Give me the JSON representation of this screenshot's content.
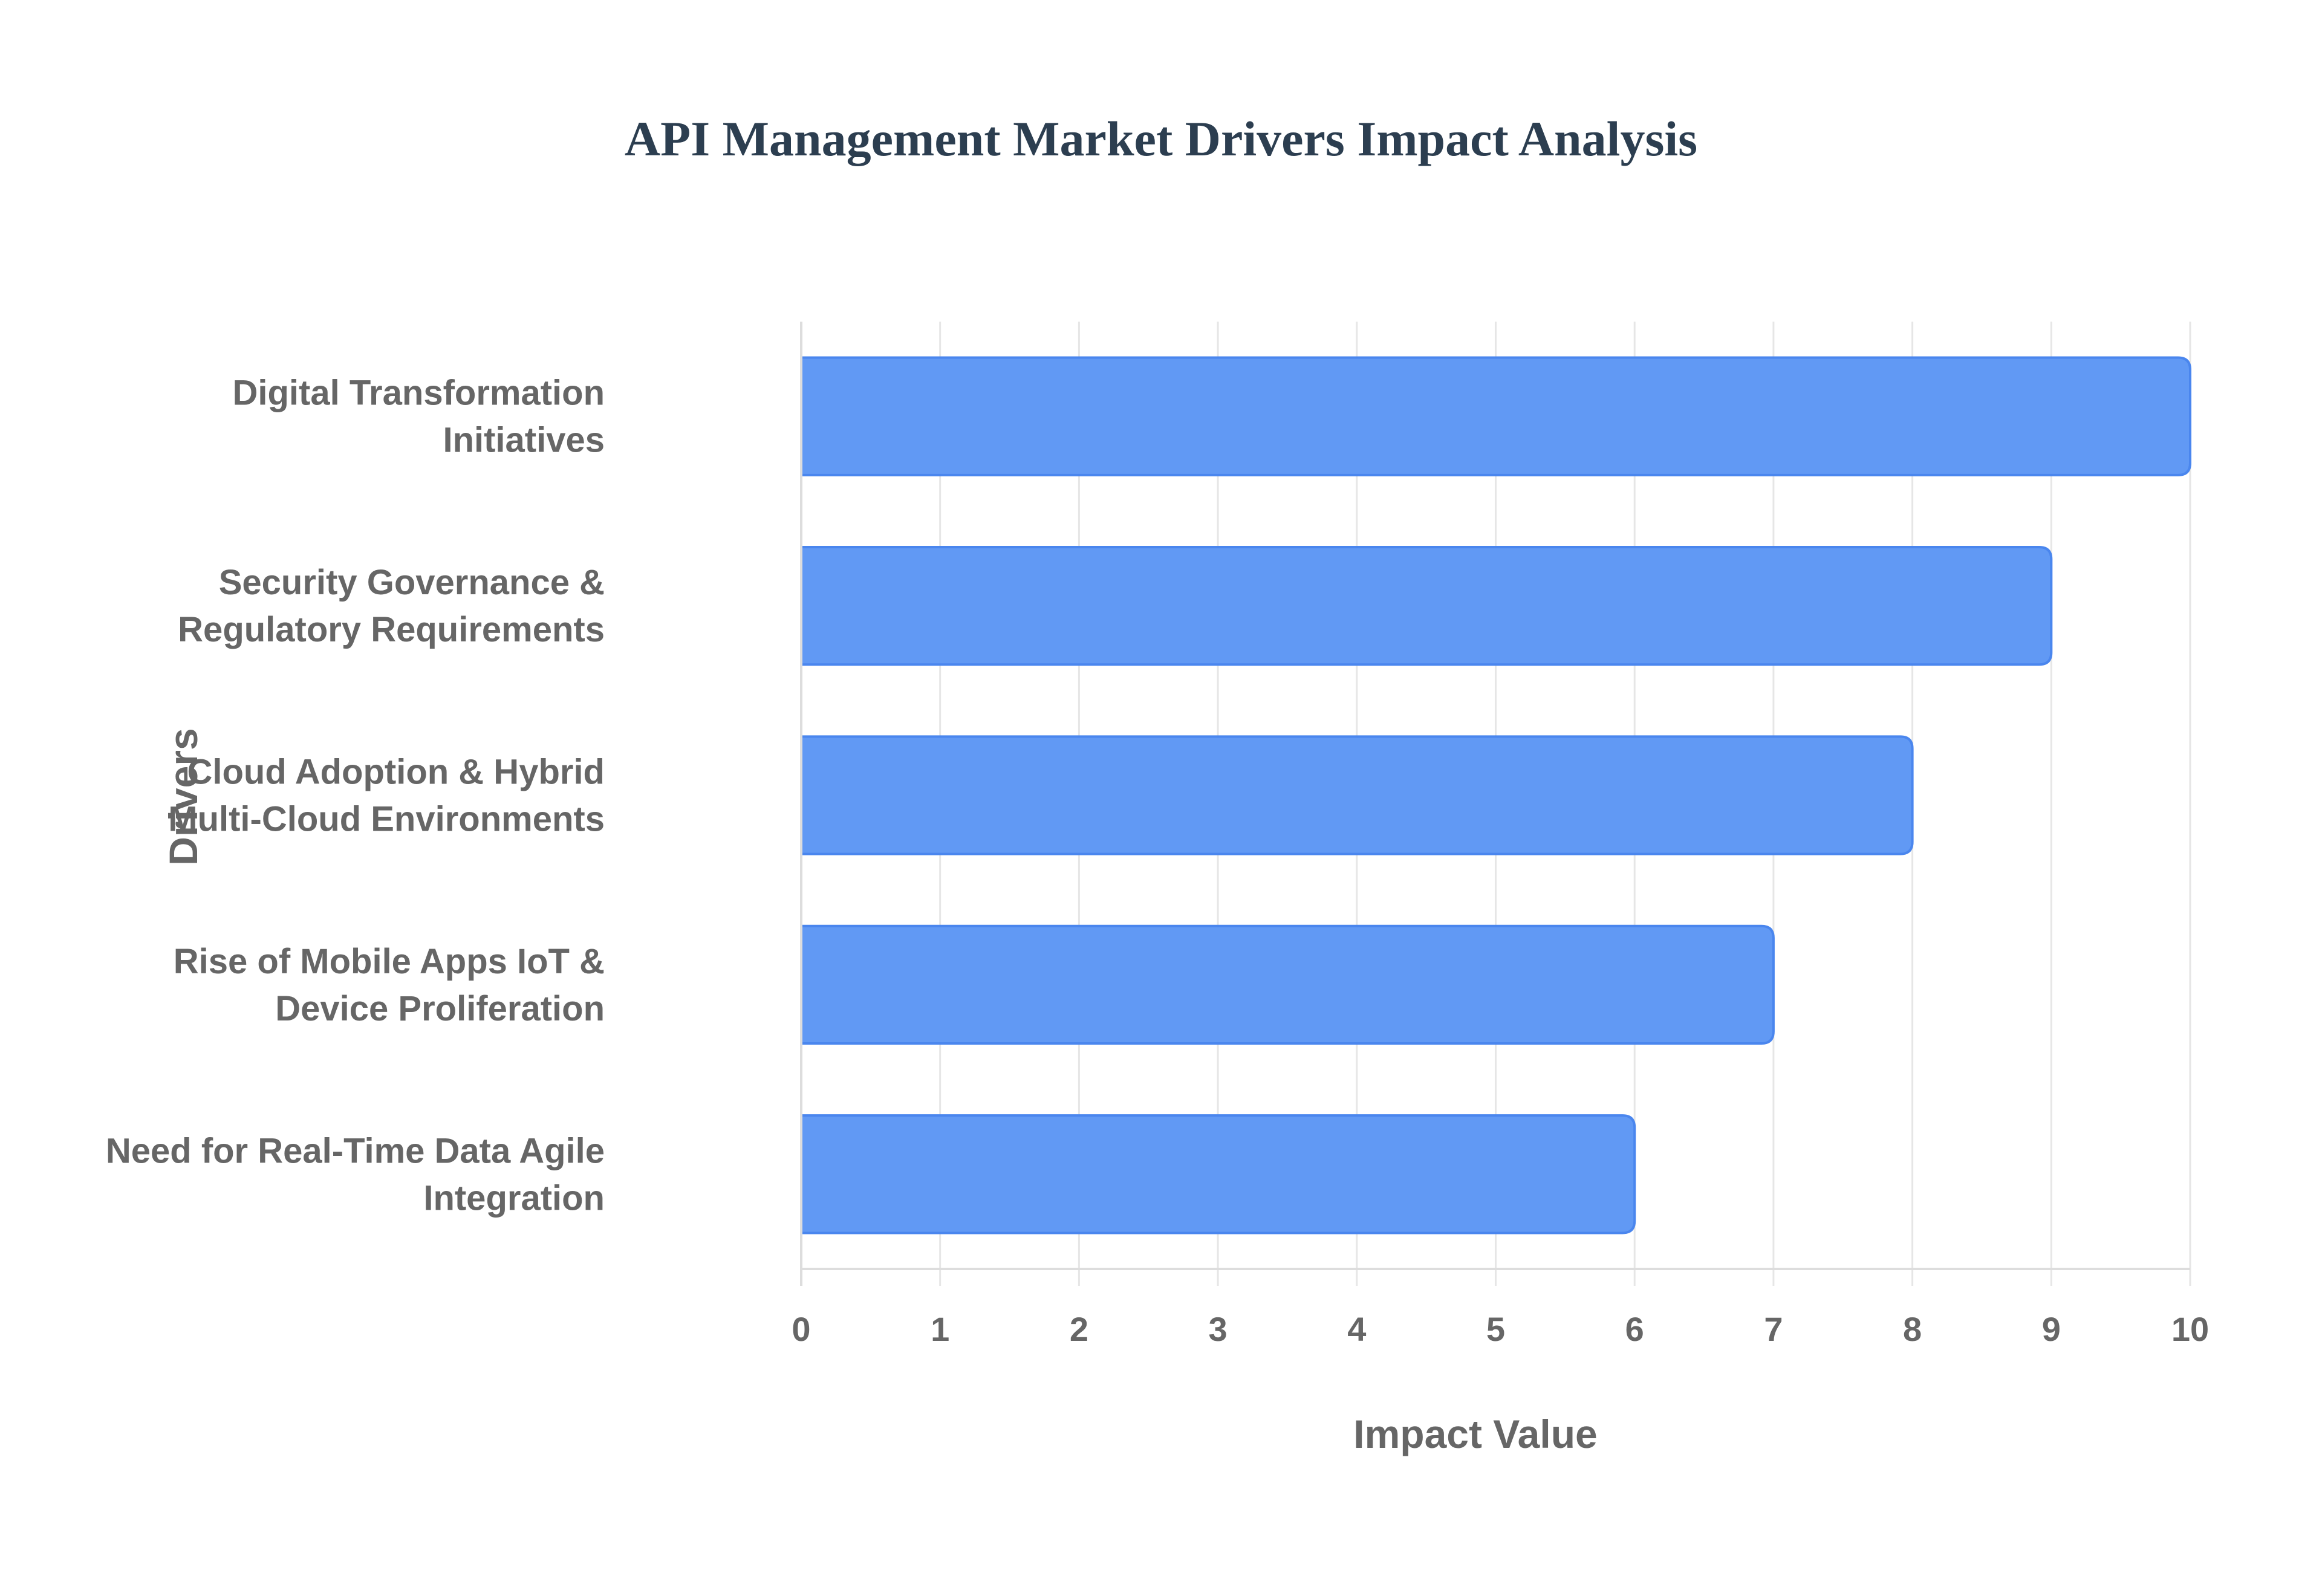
{
  "title": "API Management Market Drivers Impact Analysis",
  "colors": {
    "bar_fill": "#6199f4",
    "bar_border": "#4a86ee",
    "grid": "#e6e6e6",
    "axis": "#dddddd",
    "label": "#666666",
    "title": "#2c3e50"
  },
  "chart_data": {
    "type": "bar",
    "orientation": "horizontal",
    "title": "API Management Market Drivers Impact Analysis",
    "xlabel": "Impact Value",
    "ylabel": "Drivers",
    "xlim": [
      0,
      10
    ],
    "x_ticks": [
      0,
      1,
      2,
      3,
      4,
      5,
      6,
      7,
      8,
      9,
      10
    ],
    "grid": true,
    "legend": "none",
    "categories": [
      "Digital Transformation Initiatives",
      "Security Governance & Regulatory Requirements",
      "Cloud Adoption & Hybrid Multi-Cloud Environments",
      "Rise of Mobile Apps IoT & Device Proliferation",
      "Need for Real-Time Data Agile Integration"
    ],
    "category_lines": [
      [
        "Digital Transformation",
        "Initiatives"
      ],
      [
        "Security Governance &",
        "Regulatory Requirements"
      ],
      [
        "Cloud Adoption & Hybrid",
        "Multi-Cloud Environments"
      ],
      [
        "Rise of Mobile Apps IoT &",
        "Device Proliferation"
      ],
      [
        "Need for Real-Time Data Agile",
        "Integration"
      ]
    ],
    "values": [
      10,
      9,
      8,
      7,
      6
    ]
  }
}
